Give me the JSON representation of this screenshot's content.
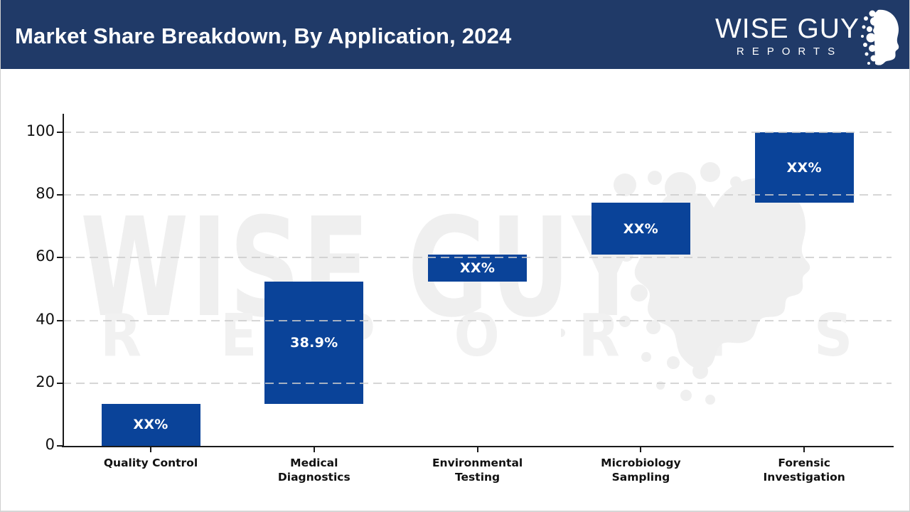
{
  "header": {
    "title": "Market Share Breakdown, By Application, 2024",
    "bg_color": "#203a68",
    "logo": {
      "line1": "WISE GUY",
      "line2": "REPORTS"
    }
  },
  "watermark": {
    "line1": "WISE GUY",
    "line2": "R E P O R T S"
  },
  "chart_data": {
    "type": "bar",
    "subtype": "waterfall",
    "title": "Market Share Breakdown, By Application, 2024",
    "categories": [
      "Quality Control",
      "Medical\nDiagnostics",
      "Environmental\nTesting",
      "Microbiology\nSampling",
      "Forensic\nInvestigation"
    ],
    "segments": [
      {
        "category": "Quality Control",
        "label": "XX%",
        "start": 0,
        "end": 13.4
      },
      {
        "category": "Medical Diagnostics",
        "label": "38.9%",
        "start": 13.4,
        "end": 52.3
      },
      {
        "category": "Environmental Testing",
        "label": "XX%",
        "start": 52.3,
        "end": 61.0
      },
      {
        "category": "Microbiology Sampling",
        "label": "XX%",
        "start": 61.0,
        "end": 77.5
      },
      {
        "category": "Forensic Investigation",
        "label": "XX%",
        "start": 77.5,
        "end": 100.0
      }
    ],
    "values_shown_on_bars": [
      "XX%",
      "38.9%",
      "XX%",
      "XX%",
      "XX%"
    ],
    "xlabel": "",
    "ylabel": "",
    "ylim": [
      0,
      100
    ],
    "yticks": [
      0,
      20,
      40,
      60,
      80,
      100
    ],
    "grid": "horizontal dashed",
    "legend": "none",
    "bar_color": "#0a4399",
    "bar_label_color": "#ffffff",
    "axis_color": "#1a1a1a",
    "gridline_color": "#cccccc"
  }
}
